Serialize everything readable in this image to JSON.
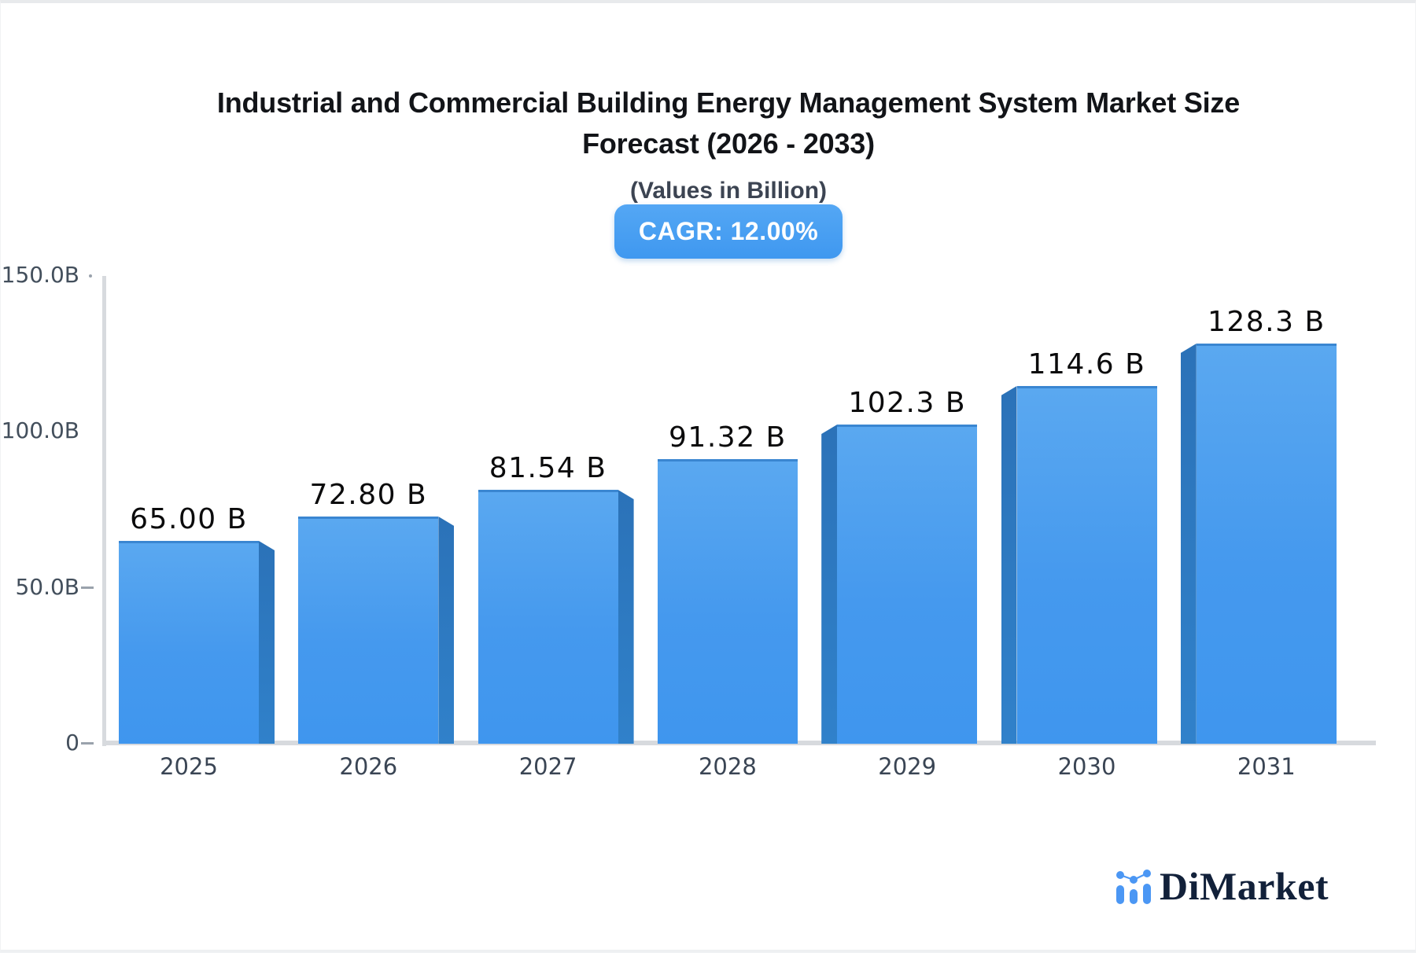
{
  "header": {
    "title_line1": "Industrial and Commercial Building Energy Management System Market Size",
    "title_line2": "Forecast (2026 - 2033)",
    "subtitle": "(Values in Billion)",
    "cagr_badge": "CAGR: 12.00%"
  },
  "chart_data": {
    "type": "bar",
    "title": "Industrial and Commercial Building Energy Management System Market Size Forecast (2026 - 2033)",
    "subtitle": "(Values in Billion)",
    "cagr": "12.00%",
    "categories": [
      "2025",
      "2026",
      "2027",
      "2028",
      "2029",
      "2030",
      "2031"
    ],
    "values": [
      65.0,
      72.8,
      81.54,
      91.32,
      102.3,
      114.6,
      128.3
    ],
    "value_labels": [
      "65.00 B",
      "72.80 B",
      "81.54 B",
      "91.32 B",
      "102.3 B",
      "114.6 B",
      "128.3 B"
    ],
    "xlabel": "",
    "ylabel": "",
    "ylim": [
      0,
      150
    ],
    "yticks": [
      {
        "value": 150,
        "label": "150.0B",
        "mark": "dot"
      },
      {
        "value": 100,
        "label": "100.0B",
        "mark": "none"
      },
      {
        "value": 50,
        "label": "50.0B",
        "mark": "dash"
      },
      {
        "value": 0,
        "label": "0",
        "mark": "dash"
      }
    ],
    "grid": false,
    "legend": "none",
    "bar_color_top": "#5aa8f0",
    "bar_color_bottom": "#3f96ee",
    "bar_side_color": "#2e7cc4",
    "bar_top_edge_color": "#3a86d1",
    "axis_color": "#d7dade",
    "badge_color": "#479ff2"
  },
  "footer": {
    "logo_text": "DiMarket",
    "logo_icon": "mini-bar-line-chart-icon",
    "logo_icon_color": "#4b97f4",
    "logo_text_color": "#12213a"
  }
}
